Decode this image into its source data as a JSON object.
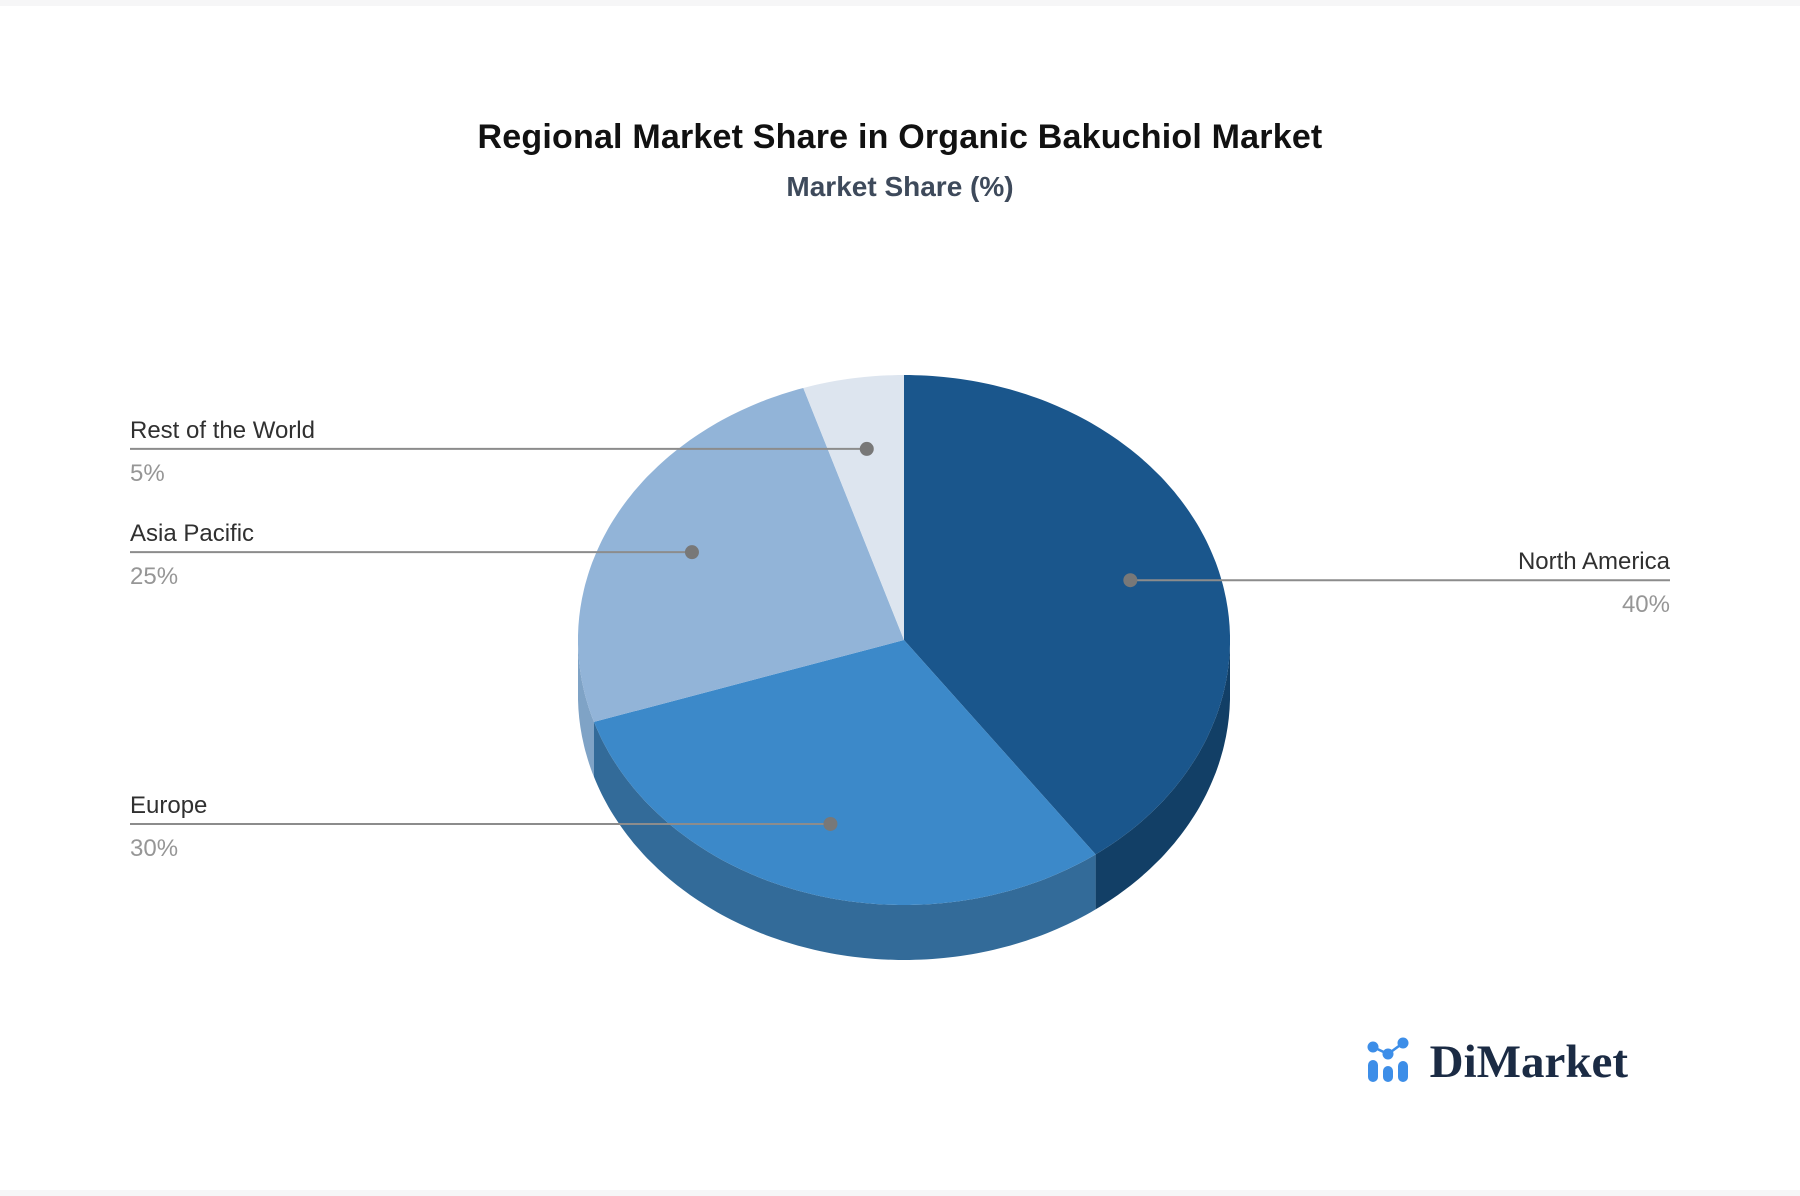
{
  "title": "Regional Market Share in Organic Bakuchiol Market",
  "subtitle": "Market Share (%)",
  "brand": {
    "name": "DiMarket",
    "text_color": "#1b2b44",
    "icon_color": "#3d8ee8",
    "icon": "bar-line-chart-icon"
  },
  "chart_data": {
    "type": "pie",
    "style": "3d",
    "title": "Regional Market Share in Organic Bakuchiol Market",
    "subtitle": "Market Share (%)",
    "unit": "%",
    "categories": [
      "North America",
      "Europe",
      "Asia Pacific",
      "Rest of the World"
    ],
    "values": [
      40,
      30,
      25,
      5
    ],
    "value_labels": [
      "40%",
      "30%",
      "25%",
      "5%"
    ],
    "slice_colors": [
      "#1a568c",
      "#3c89c9",
      "#92b4d8",
      "#dde5ef"
    ],
    "slice_side_colors": [
      "#123f66",
      "#336b99",
      "#7fa3c6",
      "#b9c6d8"
    ],
    "start_angle_deg": 90,
    "direction": "clockwise",
    "legend_position": "none",
    "labels_outside_with_leader_lines": true,
    "leader_line_color": "#8c8c8c",
    "leader_dot_color": "#787878",
    "label_color": "#303030",
    "value_color": "#969696"
  }
}
